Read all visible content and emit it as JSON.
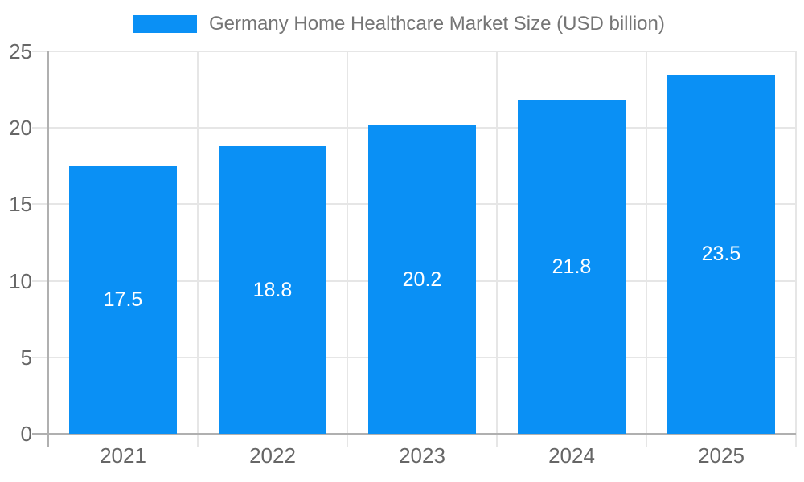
{
  "chart_data": {
    "type": "bar",
    "title": "Germany Home Healthcare Market Size (USD billion)",
    "legend": {
      "position": "top",
      "entries": [
        {
          "label": "Germany Home Healthcare Market Size (USD billion)",
          "swatch_color": "#0a90f5"
        }
      ]
    },
    "categories": [
      "2021",
      "2022",
      "2023",
      "2024",
      "2025"
    ],
    "values": [
      17.5,
      18.8,
      20.2,
      21.8,
      23.5
    ],
    "value_labels": [
      "17.5",
      "18.8",
      "20.2",
      "21.8",
      "23.5"
    ],
    "xlabel": "",
    "ylabel": "",
    "ylim": [
      0,
      25
    ],
    "yticks": [
      0,
      5,
      10,
      15,
      20,
      25
    ],
    "ytick_labels": [
      "0",
      "5",
      "10",
      "15",
      "20",
      "25"
    ],
    "grid": true,
    "colors": {
      "bar": "#0a90f5",
      "grid": "#e6e6e6",
      "axis": "#b0b0b0",
      "axis_label_text": "#666666",
      "legend_text": "#757575",
      "value_label_text": "#ffffff",
      "background": "#ffffff"
    }
  }
}
